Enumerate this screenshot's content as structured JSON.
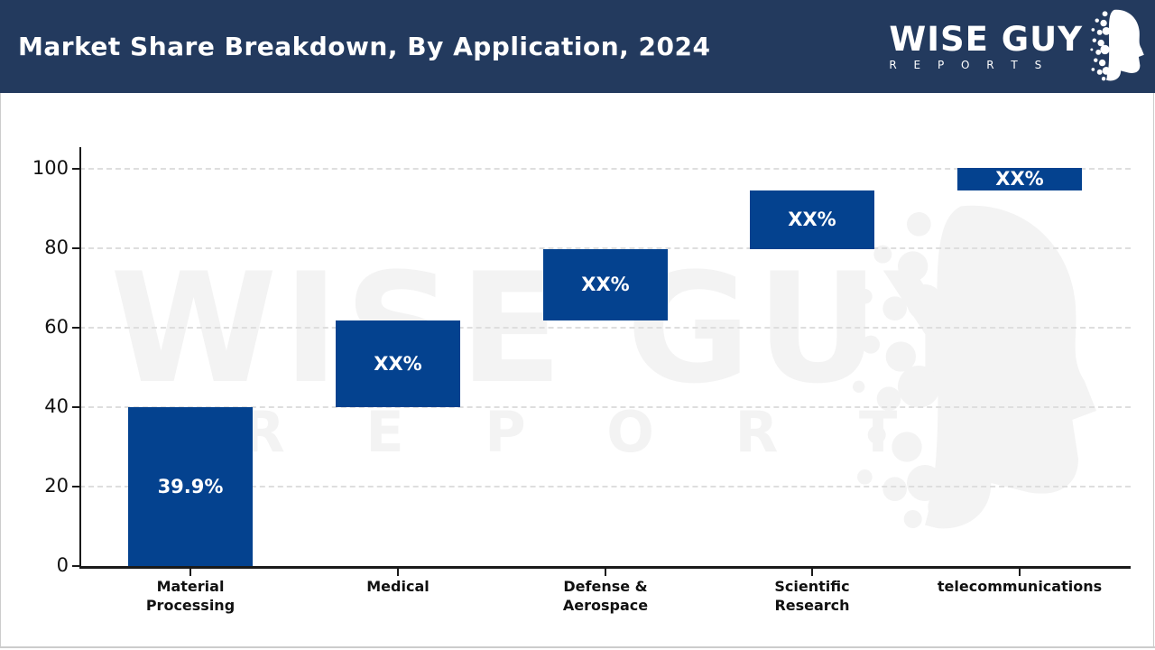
{
  "header": {
    "title": "Market Share Breakdown, By Application, 2024",
    "logo": {
      "name": "WISE GUY",
      "sub": "R E P O R T S"
    }
  },
  "watermark": {
    "line1": "WISE GUY",
    "line2": "R E P O R T S"
  },
  "chart_data": {
    "type": "bar",
    "subtype": "waterfall",
    "title": "Market Share Breakdown, By Application, 2024",
    "xlabel": "",
    "ylabel": "",
    "ylim": [
      0,
      105
    ],
    "yticks": [
      0,
      20,
      40,
      60,
      80,
      100
    ],
    "grid": "dashed-horizontal",
    "bar_color": "#04428f",
    "bar_label_color": "#ffffff",
    "categories": [
      "Material\nProcessing",
      "Medical",
      "Defense &\nAerospace",
      "Scientific\nResearch",
      "telecommunications"
    ],
    "segments": [
      {
        "category": "Material Processing",
        "start": 0,
        "end": 39.9,
        "label": "39.9%"
      },
      {
        "category": "Medical",
        "start": 39.9,
        "end": 61.8,
        "label": "XX%"
      },
      {
        "category": "Defense & Aerospace",
        "start": 61.8,
        "end": 79.8,
        "label": "XX%"
      },
      {
        "category": "Scientific Research",
        "start": 79.8,
        "end": 94.6,
        "label": "XX%"
      },
      {
        "category": "telecommunications",
        "start": 94.6,
        "end": 100.2,
        "label": "XX%"
      }
    ]
  },
  "colors": {
    "header_bg": "#233a5e",
    "bar": "#04428f",
    "grid": "#dedede",
    "axis": "#1a1a1a",
    "watermark": "#f3f3f3"
  }
}
